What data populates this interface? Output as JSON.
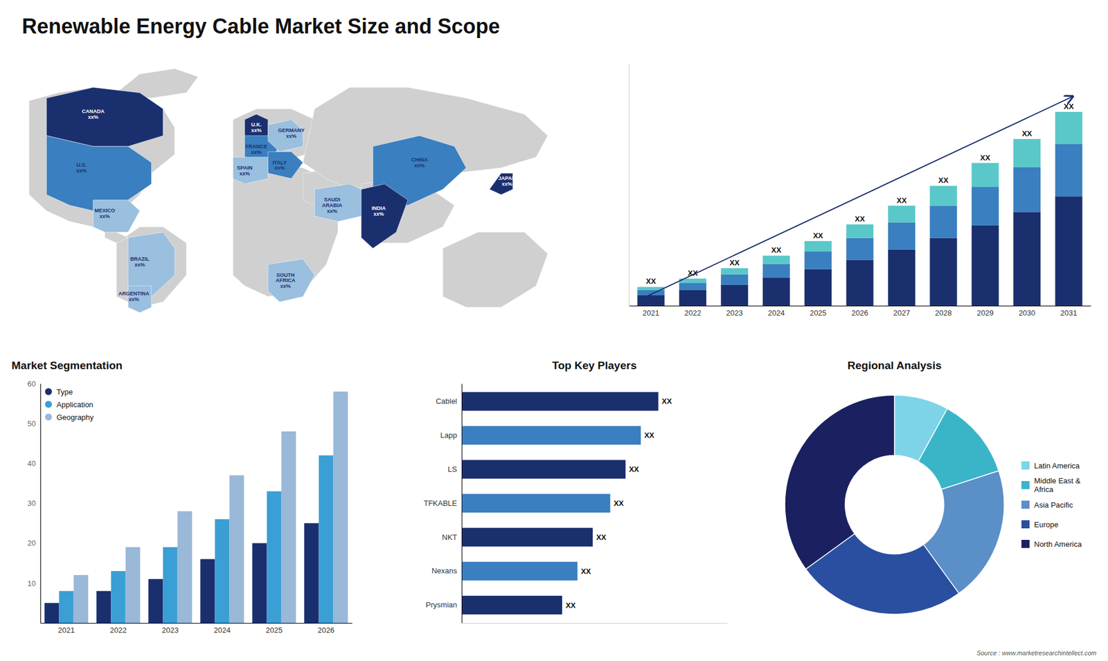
{
  "chart_data": [
    {
      "type": "map",
      "title": "Renewable Energy Cable Market Size and Scope",
      "categories": [
        "CANADA\nxx%",
        "U.S.\nxx%",
        "MEXICO\nxx%",
        "BRAZIL\nxx%",
        "ARGENTINA\nxx%",
        "U.K.\nxx%",
        "FRANCE\nxx%",
        "SPAIN\nxx%",
        "GERMANY\nxx%",
        "ITALY\nxx%",
        "SAUDI\nARABIA\nxx%",
        "SOUTH\nAFRICA\nxx%",
        "CHINA\nxx%",
        "INDIA\nxx%",
        "JAPAN\nxx%"
      ],
      "colors": [
        "#1a2f6e",
        "#3a7fbf",
        "#9abfdf",
        "#9abfdf",
        "#9abfdf",
        "#1a2f6e",
        "#3a7fbf",
        "#9abfdf",
        "#9abfdf",
        "#3a7fbf",
        "#9abfdf",
        "#9abfdf",
        "#3a7fbf",
        "#1a2f6e",
        "#1a2f6e"
      ]
    },
    {
      "type": "bar",
      "stacked": true,
      "categories": [
        "2021",
        "2022",
        "2023",
        "2024",
        "2025",
        "2026",
        "2027",
        "2028",
        "2029",
        "2030",
        "2031"
      ],
      "series": [
        {
          "color": "#1a2f6e",
          "values": [
            1,
            1.5,
            2,
            2.7,
            3.5,
            4.4,
            5.4,
            6.5,
            7.7,
            9.0,
            10.5
          ]
        },
        {
          "color": "#3a7fbf",
          "values": [
            0.5,
            0.7,
            1.0,
            1.3,
            1.7,
            2.1,
            2.6,
            3.1,
            3.7,
            4.3,
            5.0
          ]
        },
        {
          "color": "#5ac8c8",
          "values": [
            0.3,
            0.4,
            0.6,
            0.8,
            1.0,
            1.3,
            1.6,
            1.9,
            2.3,
            2.7,
            3.1
          ],
          "value_labels": [
            "XX",
            "XX",
            "XX",
            "XX",
            "XX",
            "XX",
            "XX",
            "XX",
            "XX",
            "XX",
            "XX"
          ]
        }
      ],
      "ylim": [
        0,
        23.25
      ],
      "tick_labels": "x",
      "grid": false
    },
    {
      "type": "bar",
      "title": "Market Segmentation",
      "categories": [
        "2021",
        "2022",
        "2023",
        "2024",
        "2025",
        "2026"
      ],
      "series": [
        {
          "name": "Type",
          "color": "#1a2f6e",
          "values": [
            5,
            8,
            11,
            16,
            20,
            25
          ]
        },
        {
          "name": "Application",
          "color": "#3a9fd4",
          "values": [
            8,
            13,
            19,
            26,
            33,
            42
          ]
        },
        {
          "name": "Geography",
          "color": "#9ab8d8",
          "values": [
            12,
            19,
            28,
            37,
            48,
            58
          ]
        }
      ],
      "ylim": [
        0,
        60
      ],
      "yticks": [
        10,
        20,
        30,
        40,
        50,
        60
      ],
      "legend": "top-left",
      "grid": false
    },
    {
      "type": "bar",
      "orientation": "horizontal",
      "title": "Top Key Players",
      "categories": [
        "Cablel",
        "Lapp",
        "LS",
        "TFKABLE",
        "NKT",
        "Nexans",
        "Prysmian"
      ],
      "values": [
        9.0,
        8.2,
        7.5,
        6.8,
        6.0,
        5.3,
        4.6
      ],
      "value_labels": [
        "XX",
        "XX",
        "XX",
        "XX",
        "XX",
        "XX",
        "XX"
      ],
      "colors": [
        "#1a2f6e",
        "#3a7fbf",
        "#1a2f6e",
        "#3a7fbf",
        "#1a2f6e",
        "#3a7fbf",
        "#1a2f6e"
      ],
      "xlim": [
        0,
        12.15
      ],
      "tick_labels": "y",
      "grid": false
    },
    {
      "type": "donut",
      "title": "Regional Analysis",
      "categories": [
        "Latin America",
        "Middle East &\nAfrica",
        "Asia Pacific",
        "Europe",
        "North America"
      ],
      "values": [
        8,
        12,
        20,
        25,
        35
      ],
      "colors": [
        "#7dd4e8",
        "#3ab5c8",
        "#5a8fc8",
        "#2a4fa0",
        "#1a2060"
      ],
      "legend": "right",
      "annotations": [
        "Source : www.marketresearchintellect.com"
      ]
    }
  ]
}
